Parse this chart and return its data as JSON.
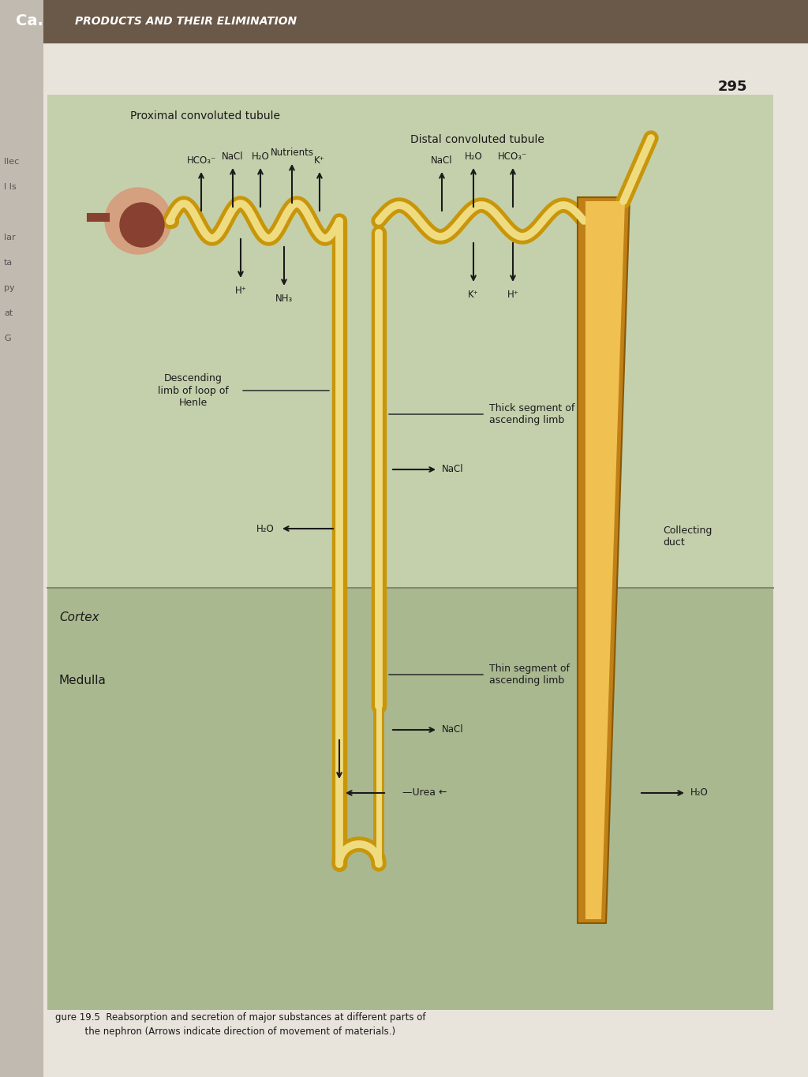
{
  "title_top": "PRODUCTS AND THEIR ELIMINATION",
  "page_number": "295",
  "header_text": "Ca.",
  "background_page": "#ddd8cc",
  "background_diagram": "#b8c4a0",
  "background_cortex": "#c4d0ac",
  "background_medulla": "#aab890",
  "background_white": "#e8e4dc",
  "header_bg": "#6a5848",
  "tubule_outer": "#c8960a",
  "tubule_inner": "#f0dc80",
  "tubule_lw_outer": 14,
  "tubule_lw_inner": 7,
  "cd_outer": "#c88820",
  "cd_inner": "#f0c858",
  "glom_color": "#884030",
  "arrow_color": "#222222",
  "text_color": "#1a1a1a",
  "labels": {
    "proximal_convoluted_tubule": "Proximal convoluted tubule",
    "distal_convoluted_tubule": "Distal convoluted tubule",
    "cortex": "Cortex",
    "medulla": "Medulla",
    "descending_limb": "Descending\nlimb of loop of\nHenle",
    "thick_segment": "Thick segment of\nascending limb",
    "thin_segment": "Thin segment of\nascending limb",
    "collecting_duct": "Collecting\nduct"
  }
}
